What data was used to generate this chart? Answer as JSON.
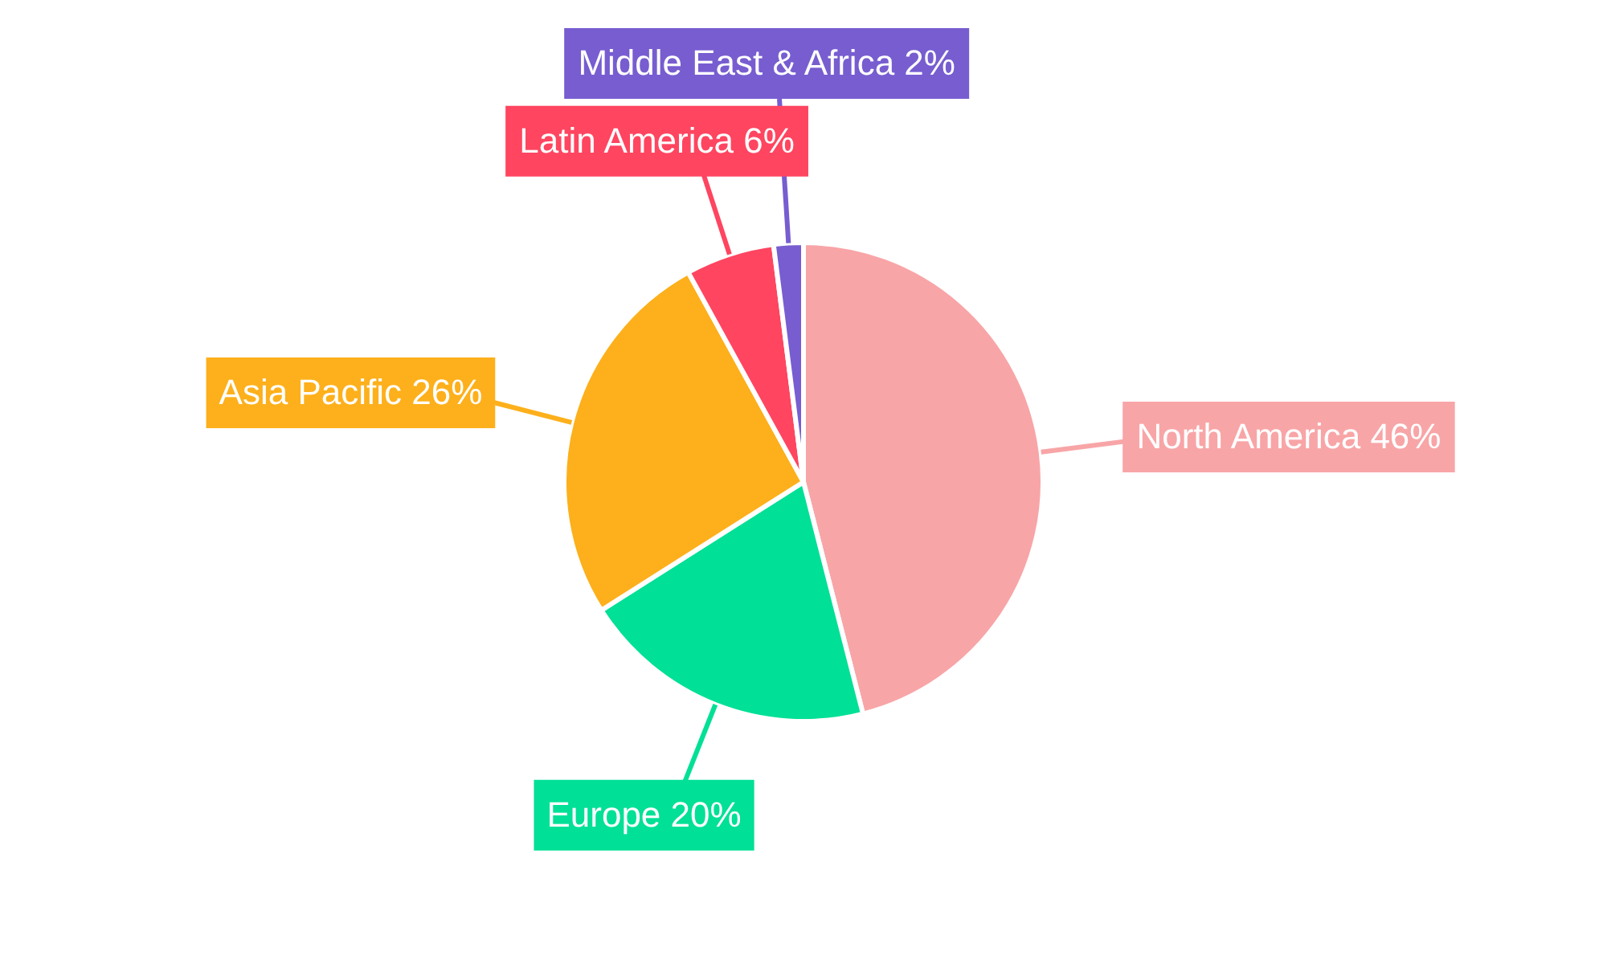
{
  "chart_data": {
    "type": "pie",
    "categories": [
      "North America",
      "Europe",
      "Asia Pacific",
      "Latin America",
      "Middle East & Africa"
    ],
    "values": [
      46,
      20,
      26,
      6,
      2
    ],
    "colors": [
      "#f8a5a7",
      "#00e096",
      "#fdb01b",
      "#ff4560",
      "#775dd0"
    ],
    "value_labels": [
      "46%",
      "20%",
      "26%",
      "6%",
      "2%"
    ]
  }
}
